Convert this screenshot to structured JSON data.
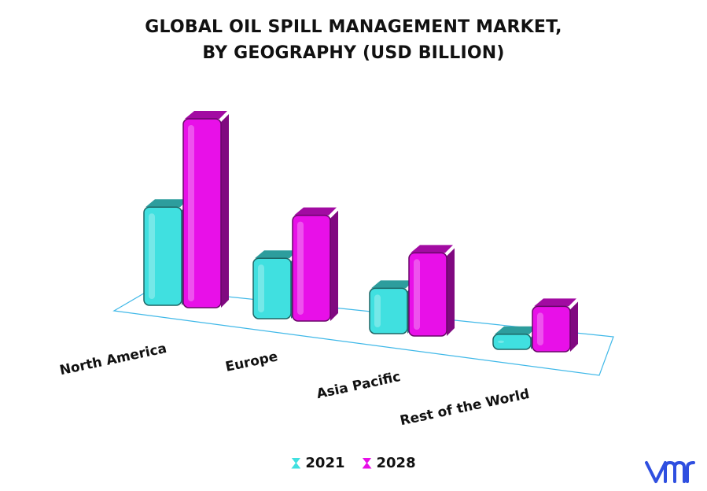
{
  "title_line1": "GLOBAL OIL SPILL MANAGEMENT MARKET,",
  "title_line2": "BY GEOGRAPHY (USD BILLION)",
  "legend": [
    {
      "label": "2021",
      "color": "#40E0E0"
    },
    {
      "label": "2028",
      "color": "#E810E8"
    }
  ],
  "logo_icon": "vmr-logo",
  "chart_data": {
    "type": "bar",
    "title": "GLOBAL OIL SPILL MANAGEMENT MARKET, BY GEOGRAPHY (USD BILLION)",
    "categories": [
      "North America",
      "Europe",
      "Asia Pacific",
      "Rest of the World"
    ],
    "series": [
      {
        "name": "2021",
        "color": "#40E0E0",
        "values": [
          1.3,
          0.8,
          0.6,
          0.2
        ]
      },
      {
        "name": "2028",
        "color": "#E810E8",
        "values": [
          2.5,
          1.4,
          1.1,
          0.6
        ]
      }
    ],
    "grid": false,
    "legend_position": "bottom"
  }
}
